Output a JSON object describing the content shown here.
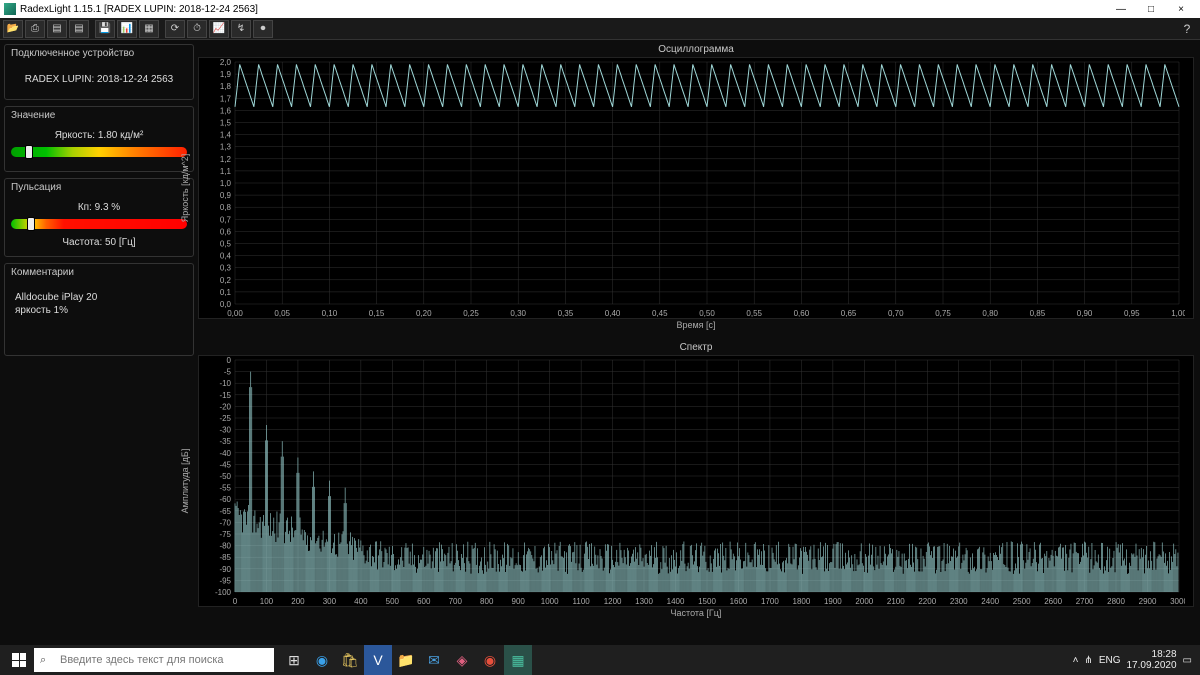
{
  "window": {
    "title": "RadexLight 1.15.1 [RADEX LUPIN: 2018-12-24 2563]",
    "minimize": "—",
    "maximize": "□",
    "close": "×"
  },
  "toolbar": {
    "icons": [
      "📂",
      "⎙",
      "▤",
      "▤",
      "💾",
      "📊",
      "▦",
      "⟳",
      "⏱",
      "📈",
      "↯",
      "⏺"
    ]
  },
  "sidebar": {
    "device_title": "Подключенное устройство",
    "device_name": "RADEX LUPIN: 2018-12-24 2563",
    "value_title": "Значение",
    "brightness_label": "Яркость: 1.80 кд/м²",
    "brightness_gradient": "linear-gradient(90deg,#00a000 0%,#00c000 20%,#a8d000 35%,#ffd000 50%,#ff8000 70%,#ff2000 100%)",
    "brightness_marker_pct": 8,
    "pulsation_title": "Пульсация",
    "pulsation_label": "Кп: 9.3 %",
    "pulsation_gradient": "linear-gradient(90deg,#00c000 0%,#a8d000 8%,#ffd000 12%,#ff6000 20%,#ff1000 30%,#ff0000 100%)",
    "pulsation_marker_pct": 9,
    "frequency_label": "Частота: 50 [Гц]",
    "comments_title": "Комментарии",
    "comments_text": "Alldocube iPlay 20\nяркость 1%"
  },
  "oscillogram": {
    "title": "Осциллограмма",
    "ylabel": "Яркость [кд/м^2]",
    "xlabel": "Время [с]",
    "ylim": [
      0,
      2.0
    ],
    "ytick_step": 0.1,
    "xlim": [
      0,
      1.0
    ],
    "xtick_step": 0.05,
    "line_color": "#9fd8d8",
    "grid_color": "#333333",
    "bg": "#000000",
    "wave_cycles": 50,
    "wave_min": 1.63,
    "wave_max": 1.98
  },
  "spectrum": {
    "title": "Спектр",
    "ylabel": "Амплитуда [дБ]",
    "xlabel": "Частота [Гц]",
    "ylim": [
      -100,
      0
    ],
    "ytick_step": 5,
    "xlim": [
      0,
      3000
    ],
    "xtick_step": 100,
    "line_color": "#9fd8d8",
    "grid_color": "#333333",
    "bg": "#000000",
    "peaks": [
      {
        "f": 50,
        "db": -5
      },
      {
        "f": 100,
        "db": -28
      },
      {
        "f": 150,
        "db": -35
      },
      {
        "f": 200,
        "db": -42
      },
      {
        "f": 250,
        "db": -48
      },
      {
        "f": 300,
        "db": -52
      },
      {
        "f": 350,
        "db": -55
      }
    ],
    "noise_floor_db": -88,
    "noise_jitter_db": 14
  },
  "taskbar": {
    "search_placeholder": "Введите здесь текст для поиска",
    "apps": [
      {
        "name": "task-view",
        "glyph": "⊞",
        "color": "#ddd"
      },
      {
        "name": "edge",
        "glyph": "◉",
        "color": "#3aa0e8"
      },
      {
        "name": "store",
        "glyph": "🛍",
        "color": "#e8c860"
      },
      {
        "name": "visio",
        "glyph": "V",
        "color": "#fff",
        "bg": "#2b579a"
      },
      {
        "name": "explorer",
        "glyph": "📁",
        "color": "#f0c060"
      },
      {
        "name": "mail",
        "glyph": "✉",
        "color": "#4aa0e0"
      },
      {
        "name": "app1",
        "glyph": "◈",
        "color": "#e06080"
      },
      {
        "name": "chrome",
        "glyph": "◉",
        "color": "#e8503c"
      },
      {
        "name": "radex",
        "glyph": "▦",
        "color": "#4ac0a0",
        "bg": "#2a5048"
      }
    ],
    "tray": {
      "chevron": "˄",
      "net": "⋔",
      "lang": "ENG",
      "time": "18:28",
      "date": "17.09.2020",
      "notif": "▭"
    }
  }
}
